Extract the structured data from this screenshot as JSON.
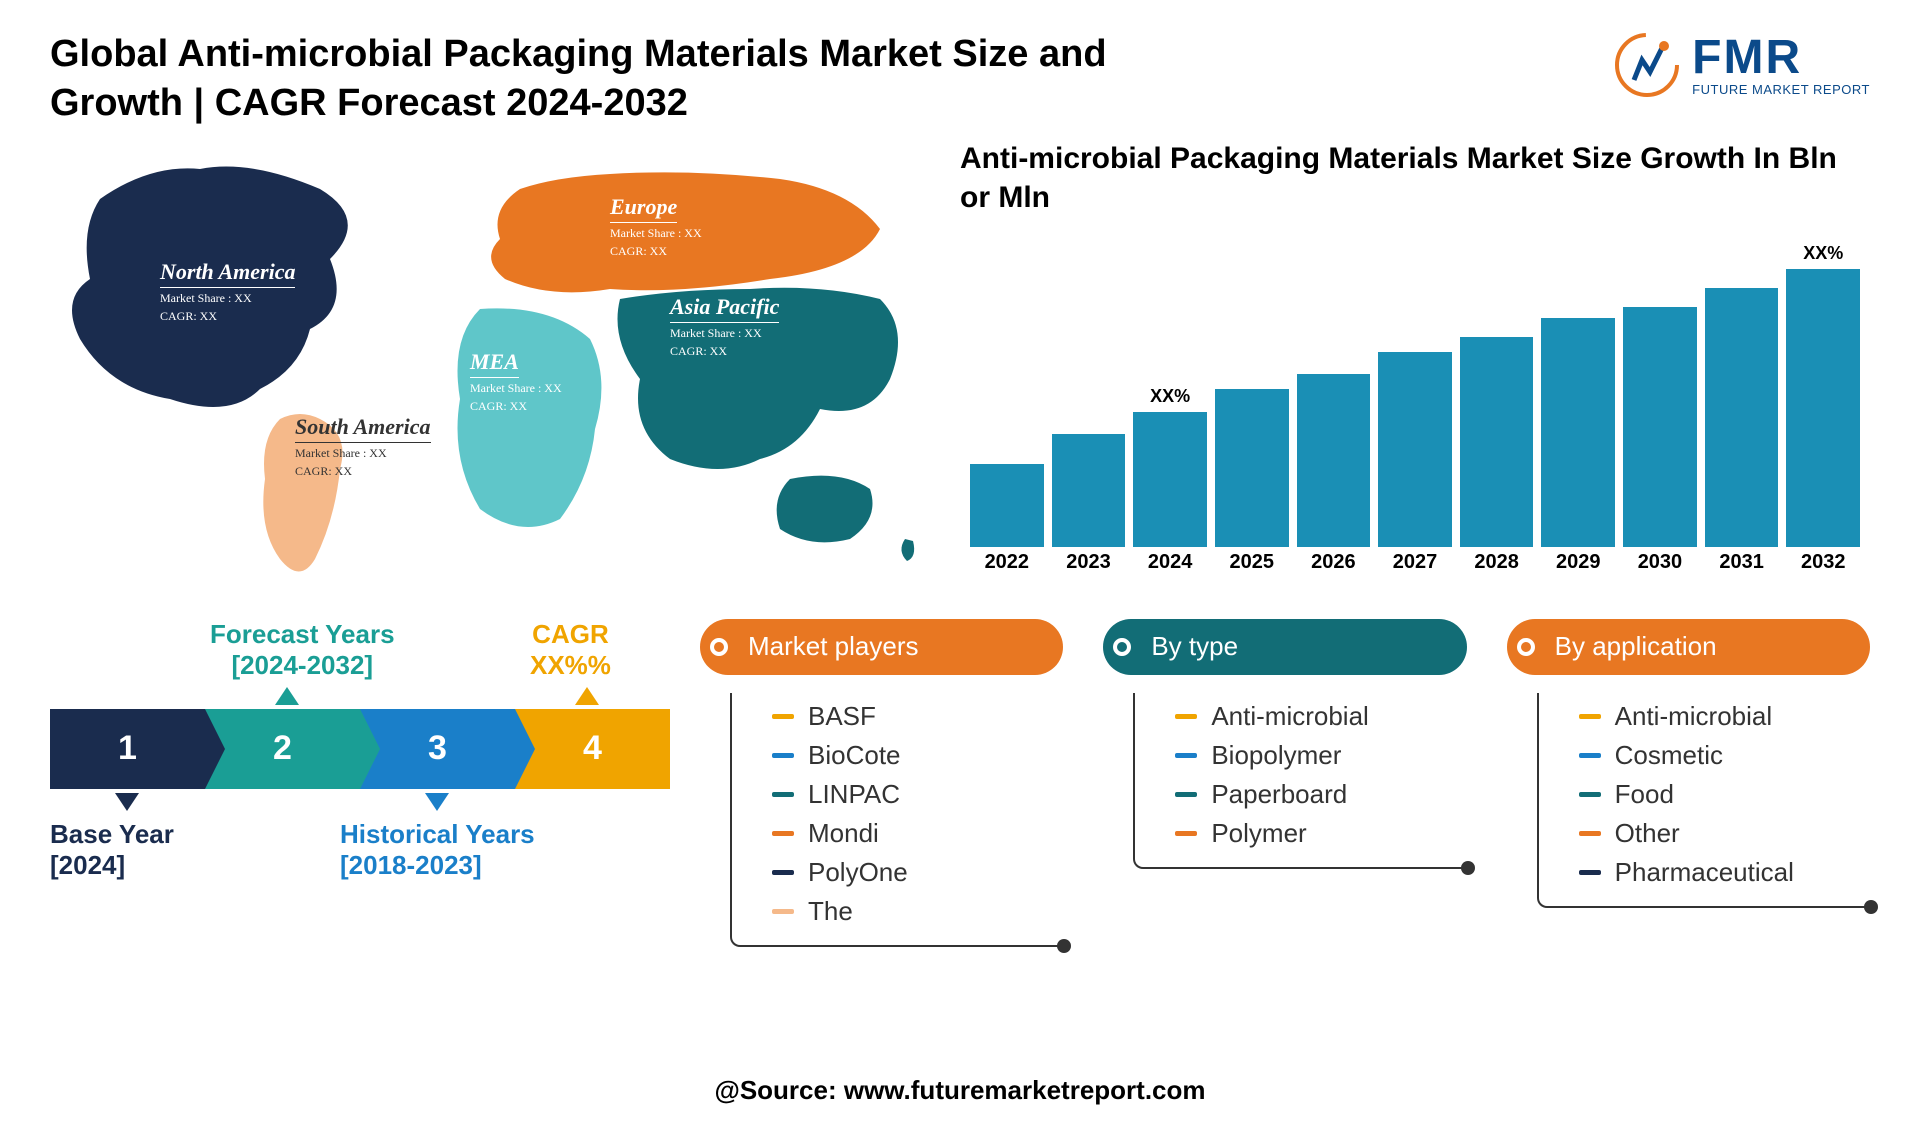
{
  "title": "Global Anti-microbial Packaging Materials  Market Size and Growth | CAGR Forecast 2024-2032",
  "logo": {
    "main": "FMR",
    "sub": "FUTURE MARKET REPORT",
    "accent_color": "#e87722",
    "text_color": "#0b4a8a"
  },
  "source": "@Source: www.futuremarketreport.com",
  "map": {
    "regions": {
      "north_america": {
        "name": "North America",
        "share": "Market Share : XX",
        "cagr": "CAGR: XX",
        "color": "#1a2c4e"
      },
      "south_america": {
        "name": "South America",
        "share": "Market Share : XX",
        "cagr": "CAGR: XX",
        "color": "#f5b98a"
      },
      "europe": {
        "name": "Europe",
        "share": "Market Share : XX",
        "cagr": "CAGR: XX",
        "color": "#e87722"
      },
      "mea": {
        "name": "MEA",
        "share": "Market Share : XX",
        "cagr": "CAGR: XX",
        "color": "#5fc6c9"
      },
      "asia_pacific": {
        "name": "Asia Pacific",
        "share": "Market Share : XX",
        "cagr": "CAGR: XX",
        "color": "#126d76"
      }
    }
  },
  "bar_chart": {
    "title": "Anti-microbial Packaging Materials Market Size Growth In Bln or Mln",
    "type": "bar",
    "categories": [
      "2022",
      "2023",
      "2024",
      "2025",
      "2026",
      "2027",
      "2028",
      "2029",
      "2030",
      "2031",
      "2032"
    ],
    "values": [
      110,
      150,
      180,
      210,
      230,
      260,
      280,
      305,
      320,
      345,
      370
    ],
    "max": 400,
    "bar_color": "#1a8fb5",
    "label_fontsize": 20,
    "annotations": {
      "2024": "XX%",
      "2032": "XX%"
    }
  },
  "timeline": {
    "segments": [
      {
        "num": "1",
        "color": "#1a2c4e"
      },
      {
        "num": "2",
        "color": "#1a9e95"
      },
      {
        "num": "3",
        "color": "#1a7fc9"
      },
      {
        "num": "4",
        "color": "#f0a400"
      }
    ],
    "labels": {
      "base_year": {
        "t1": "Base Year",
        "t2": "[2024]",
        "color": "#1a2c4e"
      },
      "forecast": {
        "t1": "Forecast Years",
        "t2": "[2024-2032]",
        "color": "#1a9e95"
      },
      "historical": {
        "t1": "Historical Years",
        "t2": "[2018-2023]",
        "color": "#1a7fc9"
      },
      "cagr": {
        "t1": "CAGR",
        "t2": "XX%%",
        "color": "#f0a400"
      }
    }
  },
  "categories": [
    {
      "header": "Market players",
      "header_color": "#e87722",
      "items": [
        {
          "label": "BASF",
          "marker_color": "#f0a400"
        },
        {
          "label": "BioCote",
          "marker_color": "#1a7fc9"
        },
        {
          "label": "LINPAC",
          "marker_color": "#126d76"
        },
        {
          "label": "Mondi",
          "marker_color": "#e87722"
        },
        {
          "label": "PolyOne",
          "marker_color": "#1a2c4e"
        },
        {
          "label": "The",
          "marker_color": "#f5b98a"
        }
      ]
    },
    {
      "header": "By type",
      "header_color": "#126d76",
      "items": [
        {
          "label": "Anti-microbial",
          "marker_color": "#f0a400"
        },
        {
          "label": "Biopolymer",
          "marker_color": "#1a7fc9"
        },
        {
          "label": "Paperboard",
          "marker_color": "#126d76"
        },
        {
          "label": "Polymer",
          "marker_color": "#e87722"
        }
      ]
    },
    {
      "header": "By application",
      "header_color": "#e87722",
      "items": [
        {
          "label": "Anti-microbial",
          "marker_color": "#f0a400"
        },
        {
          "label": "Cosmetic",
          "marker_color": "#1a7fc9"
        },
        {
          "label": "Food",
          "marker_color": "#126d76"
        },
        {
          "label": "Other",
          "marker_color": "#e87722"
        },
        {
          "label": "Pharmaceutical",
          "marker_color": "#1a2c4e"
        }
      ]
    }
  ]
}
